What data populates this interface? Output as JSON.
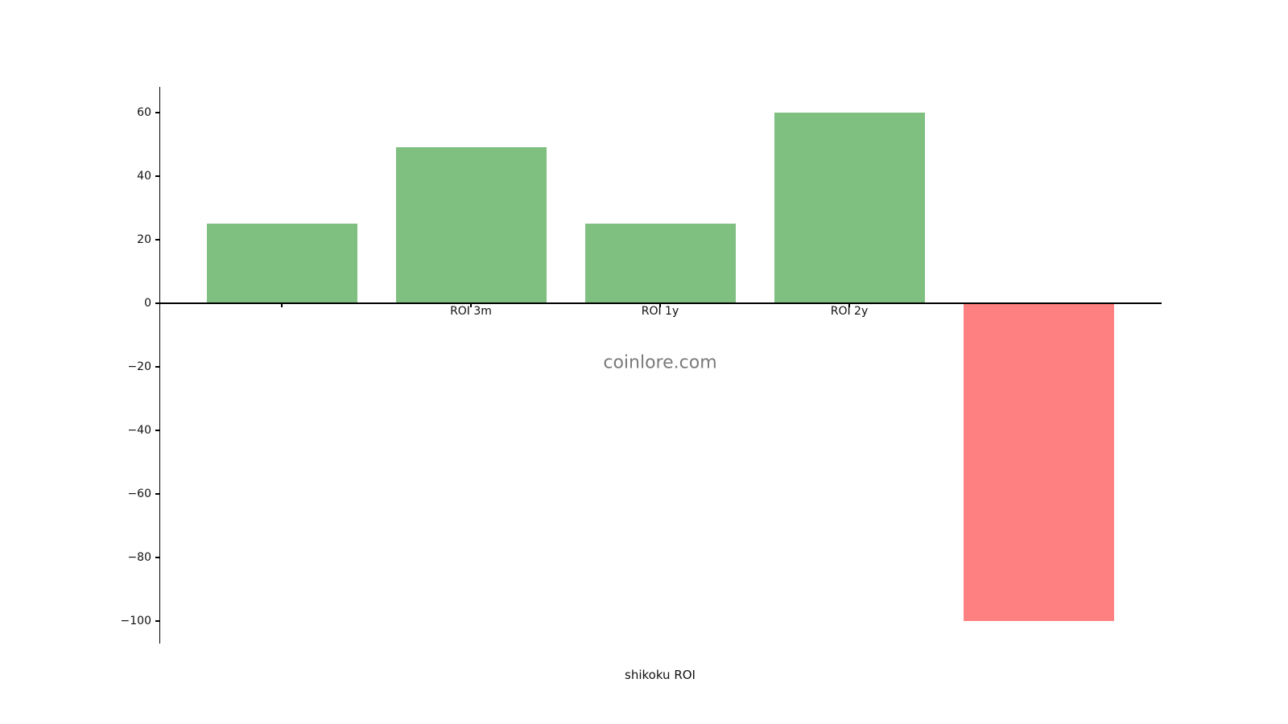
{
  "chart_data": {
    "type": "bar",
    "title": "",
    "xlabel": "shikoku ROI",
    "ylabel": "",
    "categories": [
      "",
      "ROI 3m",
      "ROI 1y",
      "ROI 2y",
      ""
    ],
    "values": [
      25,
      49,
      25,
      60,
      -100
    ],
    "series_name": "shikoku ROI",
    "positive_color": "#7fbf80",
    "negative_color": "#ff8080",
    "axis_color": "#000000",
    "tick_label_color": "#111111",
    "y_tick_values": [
      60,
      40,
      20,
      0,
      -20,
      -40,
      -60,
      -80,
      -100
    ],
    "y_tick_labels": [
      "60",
      "40",
      "20",
      "0",
      "−20",
      "−40",
      "−60",
      "−80",
      "−100"
    ],
    "ylim": [
      -107,
      68
    ],
    "grid": false,
    "legend_position": "none",
    "watermark": {
      "text": "coinlore.com",
      "color": "#7a7a7a"
    }
  }
}
